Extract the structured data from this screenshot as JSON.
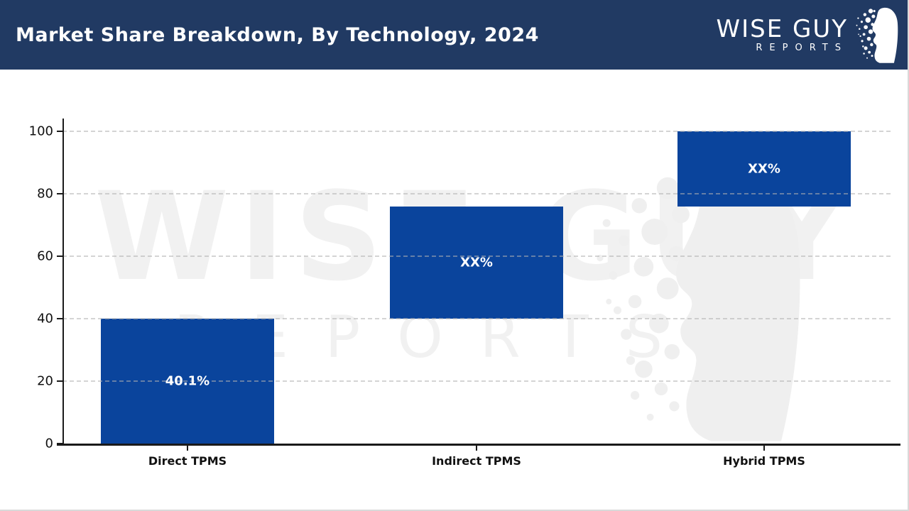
{
  "header": {
    "title": "Market Share Breakdown, By Technology, 2024",
    "bg_color": "#213a63",
    "logo": {
      "line1": "WISE GUY",
      "line2": "REPORTS"
    }
  },
  "watermark": {
    "line1": "WISE GUY",
    "line2": "REPORTS"
  },
  "chart_data": {
    "type": "bar",
    "subtype": "floating-stacked-waterfall",
    "title": "Market Share Breakdown, By Technology, 2024",
    "categories": [
      "Direct TPMS",
      "Indirect TPMS",
      "Hybrid TPMS"
    ],
    "bars": [
      {
        "category": "Direct TPMS",
        "base": 0,
        "top": 40.1,
        "label": "40.1%"
      },
      {
        "category": "Indirect TPMS",
        "base": 40,
        "top": 76,
        "label": "XX%"
      },
      {
        "category": "Hybrid TPMS",
        "base": 76,
        "top": 100,
        "label": "XX%"
      }
    ],
    "xlabel": "",
    "ylabel": "",
    "yticks": [
      0,
      20,
      40,
      60,
      80,
      100
    ],
    "ylim": [
      0,
      104
    ],
    "grid": "horizontal-dashed",
    "legend": "none",
    "bar_color": "#0a449c",
    "bar_label_color": "#ffffff",
    "grid_color": "#d9d9d9",
    "axis_color": "#1a1a1a"
  }
}
